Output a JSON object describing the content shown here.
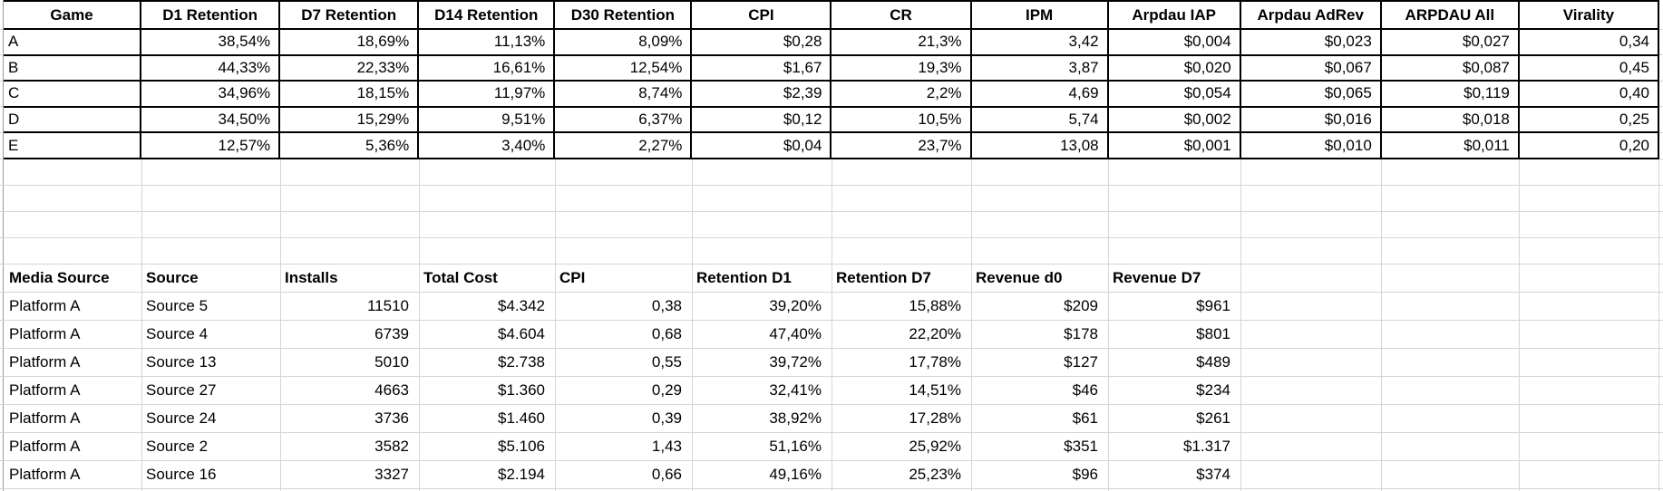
{
  "sheet": {
    "description": "spreadsheet with two tables",
    "colors": {
      "background": "#ffffff",
      "gridline": "#d5d5d5",
      "left_gridline": "#9a9a9a",
      "table_border": "#000000",
      "text": "#000000"
    },
    "games_table": {
      "headers": [
        "Game",
        "D1 Retention",
        "D7 Retention",
        "D14 Retention",
        "D30 Retention",
        "CPI",
        "CR",
        "IPM",
        "Arpdau IAP",
        "Arpdau AdRev",
        "ARPDAU All",
        "Virality"
      ],
      "rows": [
        [
          "A",
          "38,54%",
          "18,69%",
          "11,13%",
          "8,09%",
          "$0,28",
          "21,3%",
          "3,42",
          "$0,004",
          "$0,023",
          "$0,027",
          "0,34"
        ],
        [
          "B",
          "44,33%",
          "22,33%",
          "16,61%",
          "12,54%",
          "$1,67",
          "19,3%",
          "3,87",
          "$0,020",
          "$0,067",
          "$0,087",
          "0,45"
        ],
        [
          "C",
          "34,96%",
          "18,15%",
          "11,97%",
          "8,74%",
          "$2,39",
          "2,2%",
          "4,69",
          "$0,054",
          "$0,065",
          "$0,119",
          "0,40"
        ],
        [
          "D",
          "34,50%",
          "15,29%",
          "9,51%",
          "6,37%",
          "$0,12",
          "10,5%",
          "5,74",
          "$0,002",
          "$0,016",
          "$0,018",
          "0,25"
        ],
        [
          "E",
          "12,57%",
          "5,36%",
          "3,40%",
          "2,27%",
          "$0,04",
          "23,7%",
          "13,08",
          "$0,001",
          "$0,010",
          "$0,011",
          "0,20"
        ]
      ]
    },
    "sources_table": {
      "headers": [
        "Media Source",
        "Source",
        "Installs",
        "Total Cost",
        "CPI",
        "Retention D1",
        "Retention D7",
        "Revenue d0",
        "Revenue D7"
      ],
      "rows": [
        [
          "Platform A",
          "Source 5",
          "11510",
          "$4.342",
          "0,38",
          "39,20%",
          "15,88%",
          "$209",
          "$961"
        ],
        [
          "Platform A",
          "Source 4",
          "6739",
          "$4.604",
          "0,68",
          "47,40%",
          "22,20%",
          "$178",
          "$801"
        ],
        [
          "Platform A",
          "Source 13",
          "5010",
          "$2.738",
          "0,55",
          "39,72%",
          "17,78%",
          "$127",
          "$489"
        ],
        [
          "Platform A",
          "Source 27",
          "4663",
          "$1.360",
          "0,29",
          "32,41%",
          "14,51%",
          "$46",
          "$234"
        ],
        [
          "Platform A",
          "Source 24",
          "3736",
          "$1.460",
          "0,39",
          "38,92%",
          "17,28%",
          "$61",
          "$261"
        ],
        [
          "Platform A",
          "Source 2",
          "3582",
          "$5.106",
          "1,43",
          "51,16%",
          "25,92%",
          "$351",
          "$1.317"
        ],
        [
          "Platform A",
          "Source 16",
          "3327",
          "$2.194",
          "0,66",
          "49,16%",
          "25,23%",
          "$96",
          "$374"
        ]
      ]
    }
  }
}
